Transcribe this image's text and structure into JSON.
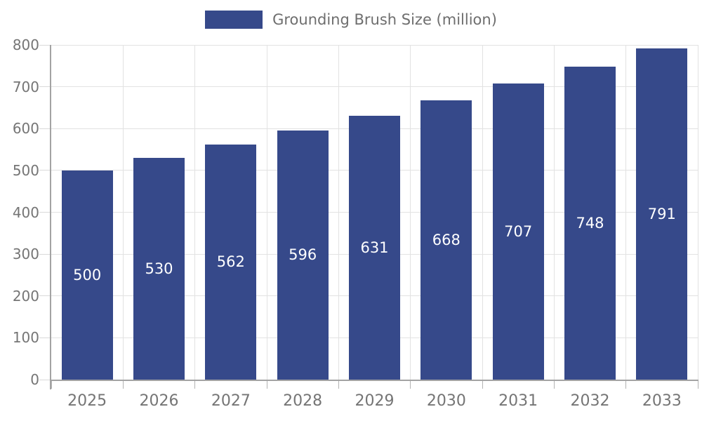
{
  "chart_data": {
    "type": "bar",
    "title": "Grounding Brush Size (million)",
    "legend": [
      "Grounding Brush Size (million)"
    ],
    "legend_position": "top-center",
    "categories": [
      "2025",
      "2026",
      "2027",
      "2028",
      "2029",
      "2030",
      "2031",
      "2032",
      "2033"
    ],
    "values": [
      500,
      530,
      562,
      596,
      631,
      668,
      707,
      748,
      791
    ],
    "xlabel": "",
    "ylabel": "",
    "ylim": [
      0,
      800
    ],
    "ytick_step": 100,
    "yticks": [
      0,
      100,
      200,
      300,
      400,
      500,
      600,
      700,
      800
    ],
    "grid": true,
    "value_labels": "inside-center",
    "colors": {
      "bar": "#36498a",
      "bar_value_label": "#ffffff",
      "axis_line": "#a3a3a3",
      "grid_line": "#e2e2e2",
      "y_tick_mark": "#d9d9d9",
      "x_tick_mark": "#b3b3b3",
      "tick_label": "#757575",
      "legend_text": "#6e6e6e",
      "background": "#ffffff"
    }
  }
}
